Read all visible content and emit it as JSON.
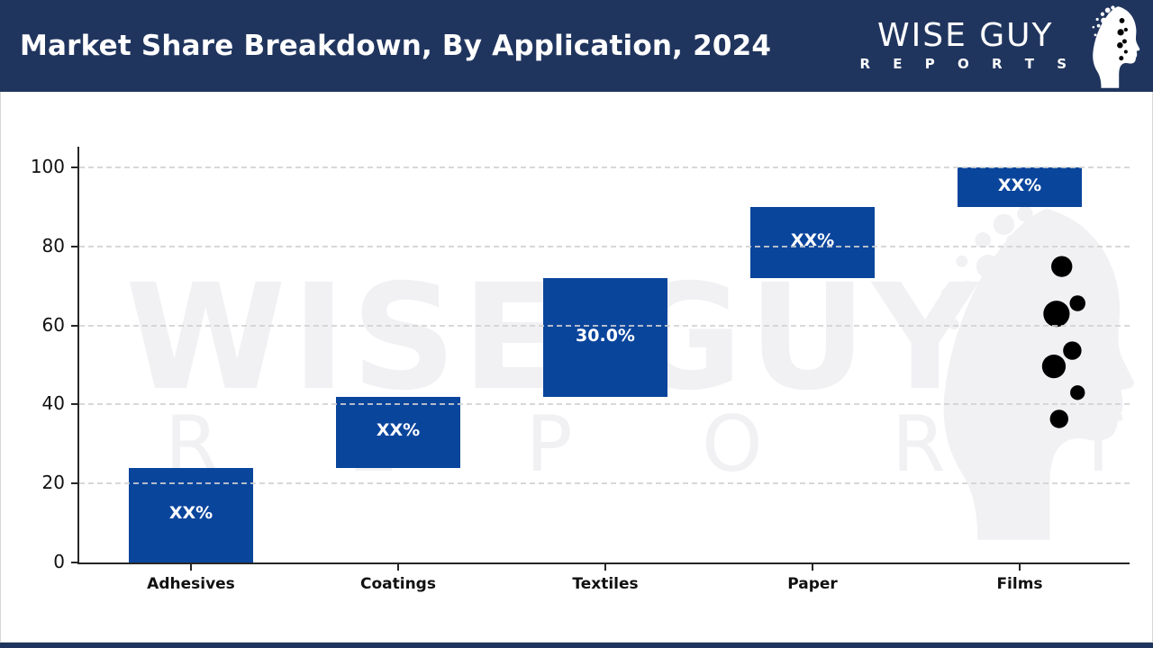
{
  "header": {
    "title": "Market Share Breakdown, By Application, 2024",
    "bg_color": "#20355e",
    "logo": {
      "line1": "WISE GUY",
      "line2": "R E P O R T S"
    }
  },
  "watermark": {
    "line1": "WISE GUY",
    "line2": "R E P O R T S"
  },
  "chart_data": {
    "type": "bar",
    "subtype": "floating-waterfall",
    "title": "Market Share Breakdown, By Application, 2024",
    "categories": [
      "Adhesives",
      "Coatings",
      "Textiles",
      "Paper",
      "Films"
    ],
    "segments": [
      {
        "category": "Adhesives",
        "start": 0,
        "end": 24,
        "label": "XX%"
      },
      {
        "category": "Coatings",
        "start": 24,
        "end": 42,
        "label": "XX%"
      },
      {
        "category": "Textiles",
        "start": 42,
        "end": 72,
        "label": "30.0%"
      },
      {
        "category": "Paper",
        "start": 72,
        "end": 90,
        "label": "XX%"
      },
      {
        "category": "Films",
        "start": 90,
        "end": 100,
        "label": "XX%"
      }
    ],
    "yticks": [
      0,
      20,
      40,
      60,
      80,
      100
    ],
    "ylim": [
      0,
      100
    ],
    "xlabel": "",
    "ylabel": "",
    "legend": "none",
    "grid": "horizontal-dashed",
    "bar_color": "#0a459c",
    "bar_label_color": "#ffffff",
    "axis_color": "#262626"
  }
}
